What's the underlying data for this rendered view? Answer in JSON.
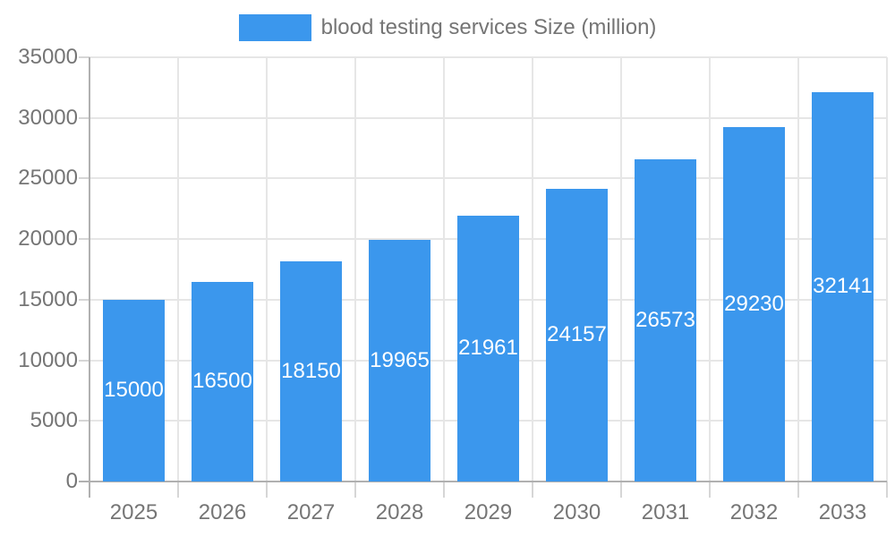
{
  "chart_data": {
    "type": "bar",
    "title": "",
    "legend_position": "top",
    "legend_label": "blood testing services Size (million)",
    "categories": [
      "2025",
      "2026",
      "2027",
      "2028",
      "2029",
      "2030",
      "2031",
      "2032",
      "2033"
    ],
    "series": [
      {
        "name": "blood testing services Size (million)",
        "values": [
          15000,
          16500,
          18150,
          19965,
          21961,
          24157,
          26573,
          29230,
          32141
        ]
      }
    ],
    "bar_value_labels": [
      "15000",
      "16500",
      "18150",
      "19965",
      "21961",
      "24157",
      "26573",
      "29230",
      "32141"
    ],
    "ylim": [
      0,
      35000
    ],
    "ytick_step": 5000,
    "yticks": [
      0,
      5000,
      10000,
      15000,
      20000,
      25000,
      30000,
      35000
    ],
    "grid": true,
    "colors": {
      "bar": "#3B97ED",
      "bar_label_text": "#ffffff",
      "axis_text": "#757575",
      "legend_text": "#757575",
      "gridline": "#e6e6e6",
      "tick": "#d6d6d6",
      "axis_line": "#b0b0b0"
    }
  }
}
